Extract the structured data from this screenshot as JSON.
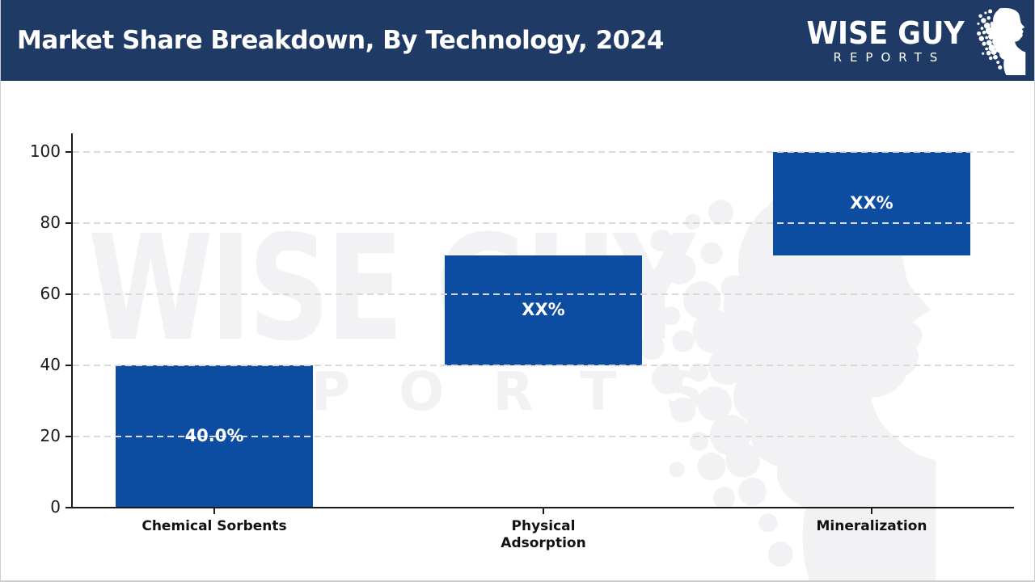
{
  "header": {
    "title": "Market Share Breakdown, By Technology, 2024",
    "logo": {
      "line1": "WISE GUY",
      "line2": "REPORTS"
    }
  },
  "watermark": {
    "line1": "WISE GUY",
    "line2": "REPORTS"
  },
  "colors": {
    "header_bg": "#203a66",
    "bar": "#0d4da1",
    "grid": "#d9d9d9",
    "axis": "#1a1a1a",
    "watermark": "#f2f2f4"
  },
  "chart_data": {
    "type": "bar",
    "subtype": "floating-waterfall",
    "title": "Market Share Breakdown, By Technology, 2024",
    "categories": [
      "Chemical Sorbents",
      "Physical Adsorption",
      "Mineralization"
    ],
    "category_label_lines": [
      [
        "Chemical Sorbents"
      ],
      [
        "Physical",
        "Adsorption"
      ],
      [
        "Mineralization"
      ]
    ],
    "segments": [
      {
        "category": "Chemical Sorbents",
        "start": 0,
        "end": 40,
        "value_label": "40.0%"
      },
      {
        "category": "Physical Adsorption",
        "start": 40,
        "end": 71,
        "value_label": "XX%"
      },
      {
        "category": "Mineralization",
        "start": 71,
        "end": 100,
        "value_label": "XX%"
      }
    ],
    "yticks": [
      0,
      20,
      40,
      60,
      80,
      100
    ],
    "ylim": [
      0,
      105
    ],
    "xlabel": "",
    "ylabel": "",
    "grid": "horizontal-dashed",
    "legend": "none",
    "bar_color": "#0d4da1"
  }
}
